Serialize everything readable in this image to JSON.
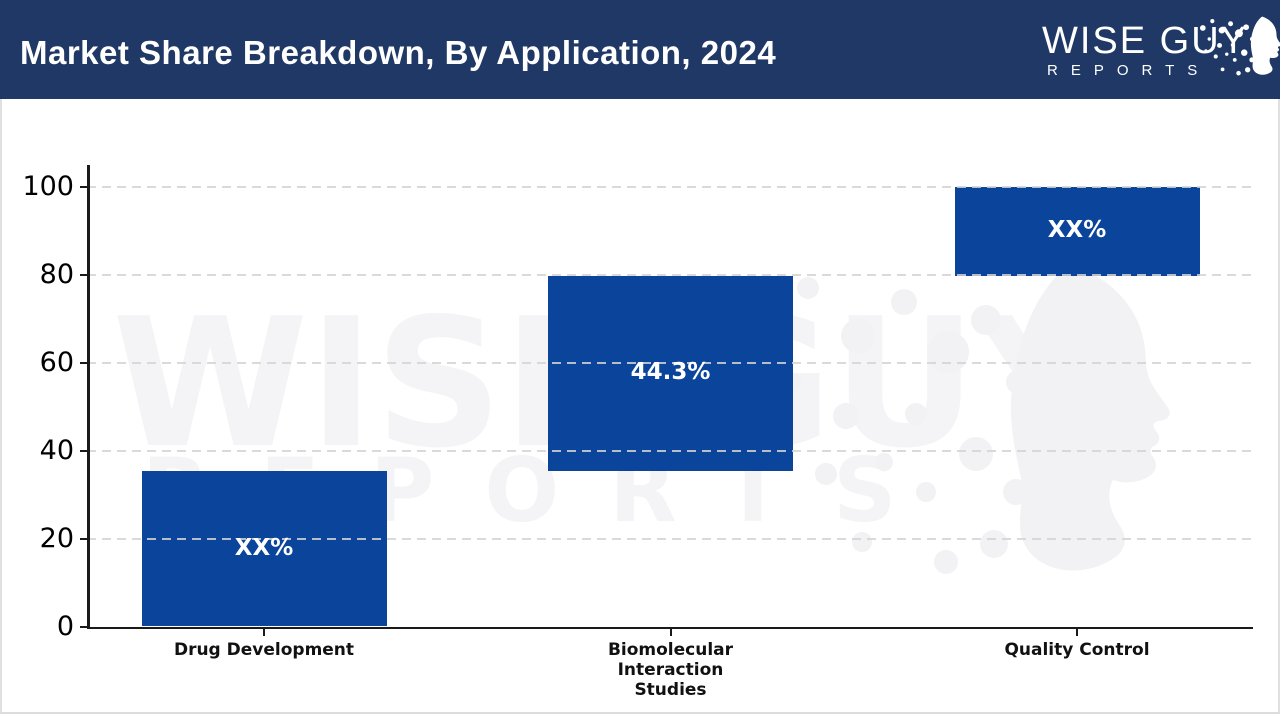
{
  "header": {
    "title": "Market Share Breakdown, By Application, 2024",
    "logo": {
      "line1": "WISE GUY",
      "line2": "REPORTS",
      "face_icon": "dotted-head-profile"
    }
  },
  "watermark": {
    "line1": "WISE GUY",
    "line2": "REPORTS",
    "face_icon": "dotted-head-profile"
  },
  "chart_data": {
    "type": "bar",
    "subtype": "floating-segment-waterfall",
    "title": "Market Share Breakdown, By Application, 2024",
    "categories": [
      "Drug Development",
      "Biomolecular\nInteraction\nStudies",
      "Quality Control"
    ],
    "bars": [
      {
        "category": "Drug Development",
        "start": 0,
        "end": 35.4,
        "label": "XX%"
      },
      {
        "category": "Biomolecular\nInteraction\nStudies",
        "start": 35.4,
        "end": 79.7,
        "label": "44.3%"
      },
      {
        "category": "Quality Control",
        "start": 79.7,
        "end": 100,
        "label": "XX%"
      }
    ],
    "yticks": [
      0,
      20,
      40,
      60,
      80,
      100
    ],
    "ylim": [
      0,
      105
    ],
    "xlabel": "",
    "ylabel": "",
    "grid": "horizontal-dashed",
    "legend": "none",
    "bar_color": "#0a449b"
  },
  "colors": {
    "header_bg": "#1f3866",
    "bar": "#0a449b",
    "grid": "#d4d4d4",
    "axis": "#1a1a1a",
    "watermark": "#f4f4f6",
    "title_text": "#ffffff"
  }
}
